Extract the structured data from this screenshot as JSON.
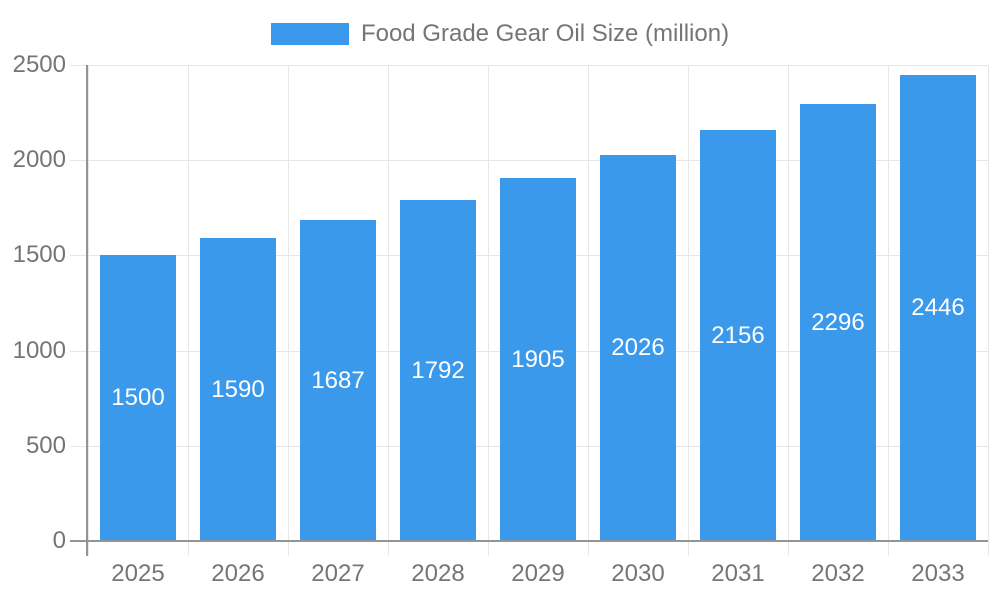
{
  "legend": {
    "label": "Food Grade Gear Oil Size (million)"
  },
  "chart_data": {
    "type": "bar",
    "title": "Food Grade Gear Oil Size (million)",
    "categories": [
      "2025",
      "2026",
      "2027",
      "2028",
      "2029",
      "2030",
      "2031",
      "2032",
      "2033"
    ],
    "values": [
      1500,
      1590,
      1687,
      1792,
      1905,
      2026,
      2156,
      2296,
      2446
    ],
    "xlabel": "",
    "ylabel": "",
    "y_ticks": [
      0,
      500,
      1000,
      1500,
      2000,
      2500
    ],
    "ylim": [
      0,
      2500
    ],
    "grid": true,
    "legend_position": "top",
    "colors": {
      "bar": "#3B99EC",
      "bar_value_label": "#ffffff",
      "axis_text": "#757575",
      "gridline": "#e6e6e6",
      "axis_line": "#949494"
    }
  }
}
